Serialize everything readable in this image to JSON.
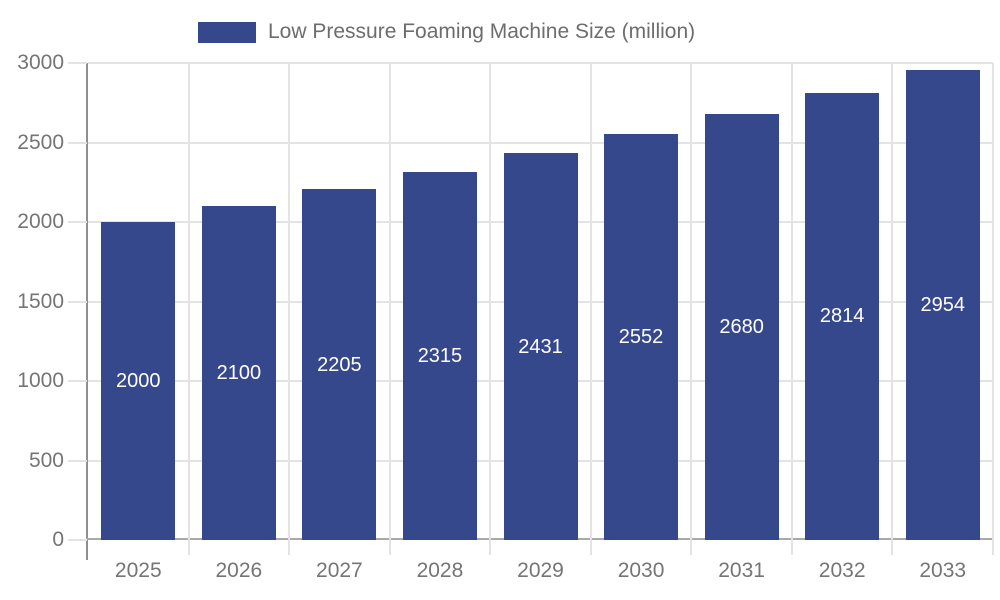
{
  "legend": {
    "label": "Low Pressure Foaming Machine Size (million)"
  },
  "chart_data": {
    "type": "bar",
    "title": "Low Pressure Foaming Machine Size (million)",
    "categories": [
      "2025",
      "2026",
      "2027",
      "2028",
      "2029",
      "2030",
      "2031",
      "2032",
      "2033"
    ],
    "values": [
      2000,
      2100,
      2205,
      2315,
      2431,
      2552,
      2680,
      2814,
      2954
    ],
    "series": [
      {
        "name": "Low Pressure Foaming Machine Size (million)",
        "values": [
          2000,
          2100,
          2205,
          2315,
          2431,
          2552,
          2680,
          2814,
          2954
        ]
      }
    ],
    "xlabel": "",
    "ylabel": "",
    "ylim": [
      0,
      3000
    ],
    "yticks": [
      0,
      500,
      1000,
      1500,
      2000,
      2500,
      3000
    ],
    "grid": true,
    "legend_position": "top",
    "value_labels": "inside-center-white"
  },
  "colors": {
    "bar": "#36488C",
    "legend_swatch": "#36488C",
    "gridline": "#e3e3e3",
    "tick": "#e3e3e3",
    "axis_y": "#8f8f8f",
    "axis_x": "#a9a9a9",
    "axis_text": "#757575",
    "legend_text": "#6d6d6d",
    "value_text": "#ffffff",
    "background": "#ffffff"
  }
}
